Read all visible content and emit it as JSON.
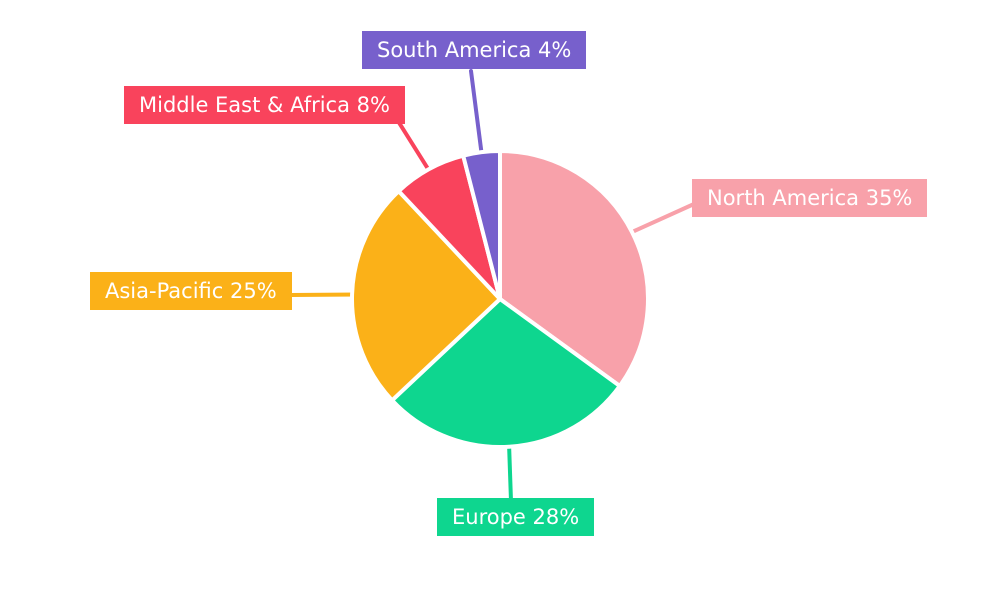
{
  "chart_data": {
    "type": "pie",
    "title": "",
    "start_angle_deg": 0,
    "direction": "clockwise",
    "legend_position": "none",
    "labels_style": "colored callout boxes with leader lines",
    "segments": [
      {
        "name": "North America",
        "value": 35,
        "label": "North America 35%",
        "color": "#F8A1AA"
      },
      {
        "name": "Europe",
        "value": 28,
        "label": "Europe 28%",
        "color": "#0ED68F"
      },
      {
        "name": "Asia-Pacific",
        "value": 25,
        "label": "Asia-Pacific 25%",
        "color": "#FBB118"
      },
      {
        "name": "Middle East & Africa",
        "value": 8,
        "label": "Middle East & Africa 8%",
        "color": "#F9435C"
      },
      {
        "name": "South America",
        "value": 4,
        "label": "South America 4%",
        "color": "#7760CC"
      }
    ]
  },
  "canvas": {
    "background": "#FFFFFF",
    "slice_gap_color": "#FFFFFF",
    "label_text_color": "#FFFFFF"
  }
}
